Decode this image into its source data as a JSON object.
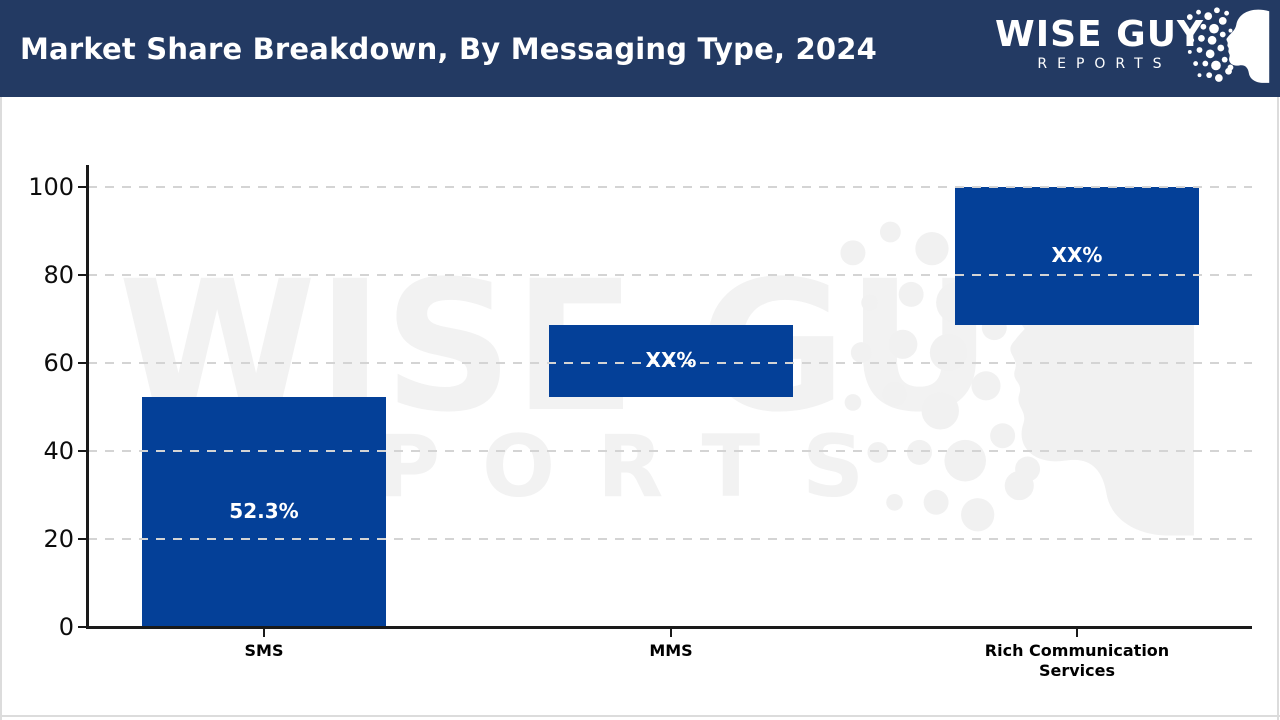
{
  "header": {
    "title": "Market Share Breakdown, By Messaging Type, 2024",
    "logo_line1": "WISE GUY",
    "logo_line2": "REPORTS"
  },
  "watermark": {
    "line1": "WISE GUY",
    "line2": "REPORTS"
  },
  "chart_data": {
    "type": "bar",
    "subtype": "waterfall",
    "title": "Market Share Breakdown, By Messaging Type, 2024",
    "categories": [
      "SMS",
      "MMS",
      "Rich Communication Services"
    ],
    "segments": [
      {
        "category": "SMS",
        "from": 0,
        "to": 52.3,
        "label": "52.3%"
      },
      {
        "category": "MMS",
        "from": 52.3,
        "to": 68.6,
        "label": "XX%"
      },
      {
        "category": "Rich Communication Services",
        "from": 68.6,
        "to": 100,
        "label": "XX%"
      }
    ],
    "ylim": [
      0,
      100
    ],
    "yticks": [
      0,
      20,
      40,
      60,
      80,
      100
    ],
    "grid": "horizontal-dashed",
    "legend": "none",
    "bar_color": "#044098",
    "bar_label_color": "#ffffff"
  },
  "colors": {
    "header_bg": "#233a63",
    "bar": "#044098",
    "gridline": "#d4d4d4",
    "axis": "#1a1a1a",
    "watermark": "#f2f2f2",
    "page_border": "#dcdcdc"
  }
}
